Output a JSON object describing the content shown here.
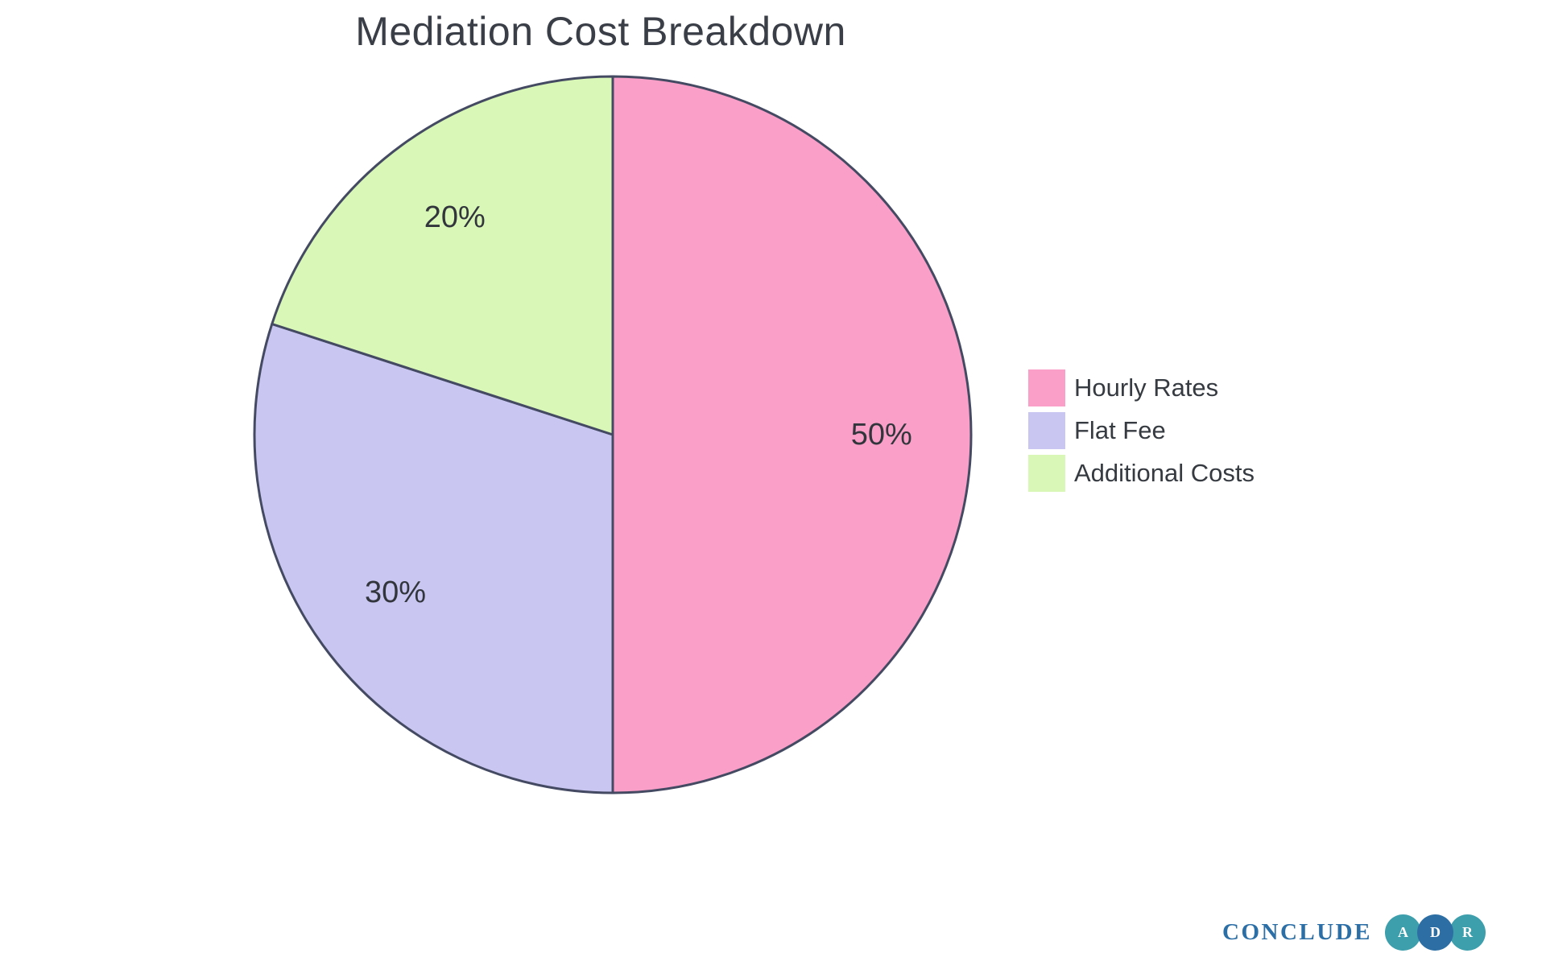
{
  "chart_data": {
    "type": "pie",
    "title": "Mediation Cost Breakdown",
    "labels": [
      "Hourly Rates",
      "Flat Fee",
      "Additional Costs"
    ],
    "values": [
      50,
      30,
      20
    ],
    "percent_labels": [
      "50%",
      "30%",
      "20%"
    ],
    "colors": [
      "#FA9FC8",
      "#C9C6F2",
      "#D9F7B7"
    ],
    "stroke_color": "#454A63",
    "start_angle": "12-oclock",
    "direction": "clockwise",
    "legend_position": "right",
    "label_color": "#32363C"
  },
  "legend": {
    "items": [
      {
        "label": "Hourly Rates",
        "color": "#FA9FC8"
      },
      {
        "label": "Flat Fee",
        "color": "#C9C6F2"
      },
      {
        "label": "Additional Costs",
        "color": "#D9F7B7"
      }
    ]
  },
  "branding": {
    "wordmark": "CONCLUDE",
    "wordmark_color": "#2C6FA6",
    "badges": [
      {
        "letter": "A",
        "color": "#3D9EAC"
      },
      {
        "letter": "D",
        "color": "#2D6FA4"
      },
      {
        "letter": "R",
        "color": "#3D9EAC"
      }
    ]
  }
}
